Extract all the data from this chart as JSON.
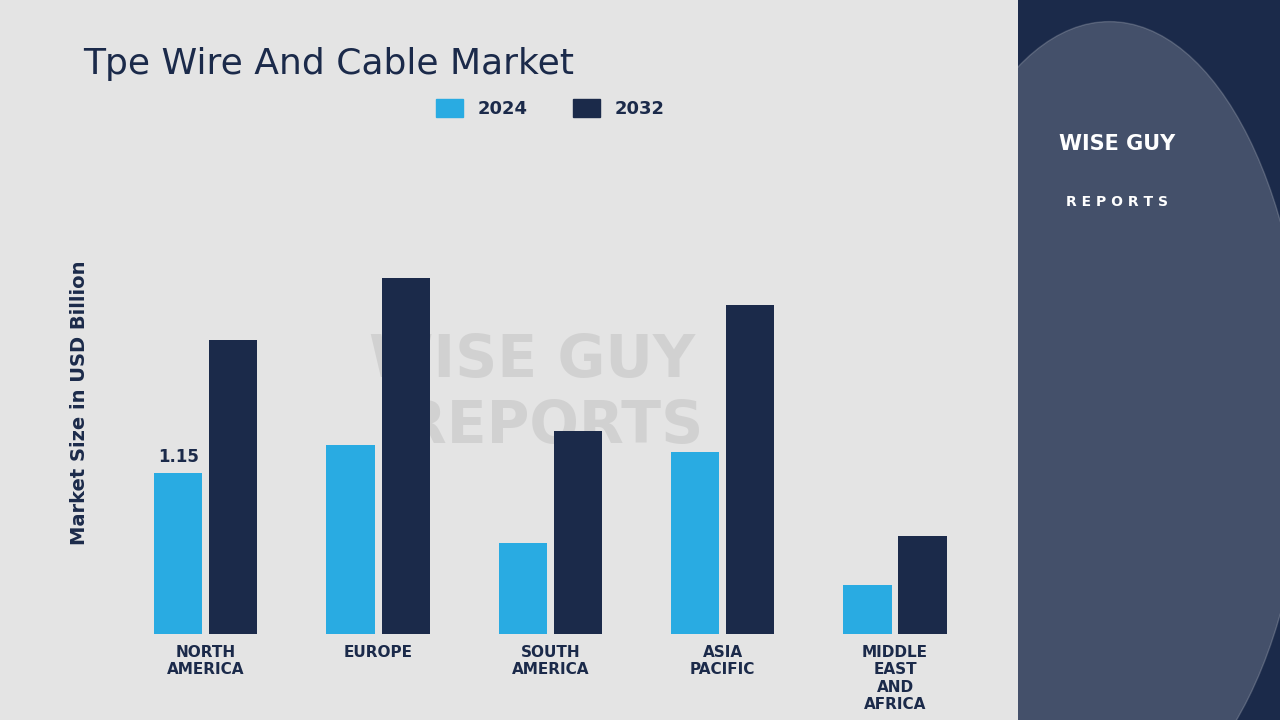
{
  "title": "Tpe Wire And Cable Market",
  "ylabel": "Market Size in USD Billion",
  "categories": [
    "NORTH\nAMERICA",
    "EUROPE",
    "SOUTH\nAMERICA",
    "ASIA\nPACIFIC",
    "MIDDLE\nEAST\nAND\nAFRICA"
  ],
  "values_2024": [
    1.15,
    1.35,
    0.65,
    1.3,
    0.35
  ],
  "values_2032": [
    2.1,
    2.55,
    1.45,
    2.35,
    0.7
  ],
  "color_2024": "#29ABE2",
  "color_2032": "#1B2A4A",
  "bar_annotation": "1.15",
  "legend_labels": [
    "2024",
    "2032"
  ],
  "background_color": "#E4E4E4",
  "right_panel_color": "#1B2A4A",
  "title_color": "#1B2A4A",
  "ylabel_color": "#1B2A4A",
  "tick_label_color": "#1B2A4A",
  "title_fontsize": 26,
  "ylabel_fontsize": 14,
  "tick_fontsize": 11,
  "legend_fontsize": 13
}
